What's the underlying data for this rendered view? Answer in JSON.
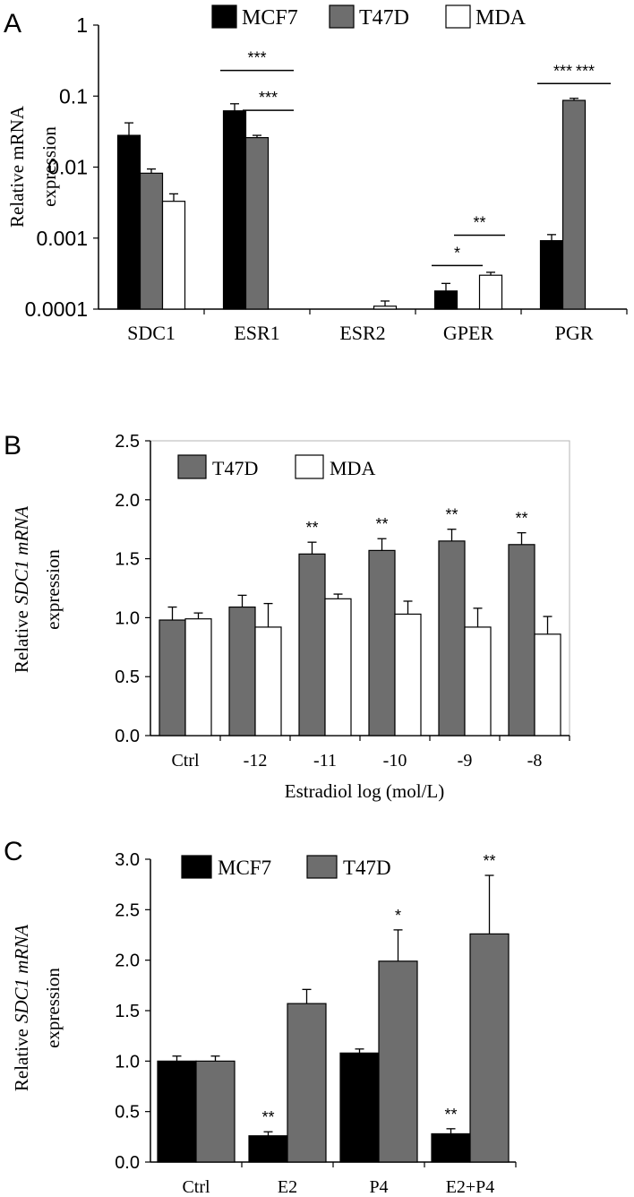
{
  "panels": {
    "A": {
      "letter": "A"
    },
    "B": {
      "letter": "B"
    },
    "C": {
      "letter": "C"
    }
  },
  "chart_data": [
    {
      "id": "A",
      "type": "bar",
      "yscale": "log",
      "ylim": [
        0.0001,
        1
      ],
      "yticks": [
        "1",
        "0.1",
        "0.01",
        "0.001",
        "0.0001"
      ],
      "ylabel": [
        "Relative   mRNA",
        "expression"
      ],
      "ylabel_italic": "",
      "xlabel": "",
      "grid": false,
      "legend_position": "top",
      "categories": [
        "SDC1",
        "ESR1",
        "ESR2",
        "GPER",
        "PGR"
      ],
      "series": [
        {
          "name": "MCF7",
          "color": "#000000",
          "values": [
            0.028,
            0.062,
            null,
            0.00018,
            0.00092
          ],
          "errors": [
            0.014,
            0.016,
            null,
            5e-05,
            0.0002
          ]
        },
        {
          "name": "T47D",
          "color": "#6e6e6e",
          "values": [
            0.0082,
            0.026,
            null,
            null,
            0.087
          ],
          "errors": [
            0.0012,
            0.002,
            null,
            null,
            0.006
          ]
        },
        {
          "name": "MDA",
          "color": "#ffffff",
          "values": [
            0.0033,
            null,
            0.00011,
            0.0003,
            null
          ],
          "errors": [
            0.0009,
            null,
            2e-05,
            3e-05,
            null
          ]
        }
      ],
      "annotations": [
        {
          "text": "***",
          "cat": 1,
          "from": 0,
          "to": 2,
          "y": 0.23
        },
        {
          "text": "***",
          "cat": 1,
          "from": 1,
          "to": 2,
          "y": 0.063
        },
        {
          "text": "*",
          "cat": 3,
          "from": 0,
          "to": 1,
          "y": 0.00041
        },
        {
          "text": "**",
          "cat": 3,
          "from": 1,
          "to": 2,
          "y": 0.0011
        },
        {
          "text": "***",
          "cat": 4,
          "from": 0,
          "to": 1,
          "y": 0.15
        },
        {
          "text": "***",
          "cat": 4,
          "from": 1,
          "to": 2,
          "y": 0.15
        }
      ]
    },
    {
      "id": "B",
      "type": "bar",
      "ylim": [
        0,
        2.5
      ],
      "yticks": [
        "0.0",
        "0.5",
        "1.0",
        "1.5",
        "2.0",
        "2.5"
      ],
      "ylabel": [
        "Relative",
        "expression"
      ],
      "ylabel_italic": "SDC1 mRNA",
      "xlabel": "Estradiol  log (mol/L)",
      "grid": false,
      "legend_position": "top-left",
      "categories": [
        "Ctrl",
        "-12",
        "-11",
        "-10",
        "-9",
        "-8"
      ],
      "series": [
        {
          "name": "T47D",
          "color": "#6e6e6e",
          "values": [
            0.98,
            1.09,
            1.54,
            1.57,
            1.65,
            1.62
          ],
          "errors": [
            0.11,
            0.1,
            0.1,
            0.1,
            0.1,
            0.1
          ]
        },
        {
          "name": "MDA",
          "color": "#ffffff",
          "values": [
            0.99,
            0.92,
            1.16,
            1.03,
            0.92,
            0.86
          ],
          "errors": [
            0.05,
            0.2,
            0.04,
            0.11,
            0.16,
            0.15
          ]
        }
      ],
      "annotations": [
        {
          "text": "**",
          "cat": 2,
          "series": 0
        },
        {
          "text": "**",
          "cat": 3,
          "series": 0
        },
        {
          "text": "**",
          "cat": 4,
          "series": 0
        },
        {
          "text": "**",
          "cat": 5,
          "series": 0
        }
      ]
    },
    {
      "id": "C",
      "type": "bar",
      "ylim": [
        0,
        3.0
      ],
      "yticks": [
        "0.0",
        "0.5",
        "1.0",
        "1.5",
        "2.0",
        "2.5",
        "3.0"
      ],
      "ylabel": [
        "Relative",
        "expression"
      ],
      "ylabel_italic": "SDC1 mRNA",
      "xlabel": "",
      "grid": false,
      "legend_position": "top",
      "categories": [
        "Ctrl",
        "E2",
        "P4",
        "E2+P4"
      ],
      "series": [
        {
          "name": "MCF7",
          "color": "#000000",
          "values": [
            1.0,
            0.26,
            1.08,
            0.28
          ],
          "errors": [
            0.05,
            0.04,
            0.04,
            0.05
          ]
        },
        {
          "name": "T47D",
          "color": "#6e6e6e",
          "values": [
            1.0,
            1.57,
            1.99,
            2.26
          ],
          "errors": [
            0.05,
            0.14,
            0.31,
            0.58
          ]
        }
      ],
      "annotations": [
        {
          "text": "**",
          "cat": 1,
          "series": 0
        },
        {
          "text": "**",
          "cat": 3,
          "series": 0
        },
        {
          "text": "*",
          "cat": 2,
          "series": 1
        },
        {
          "text": "**",
          "cat": 3,
          "series": 1
        }
      ]
    }
  ]
}
